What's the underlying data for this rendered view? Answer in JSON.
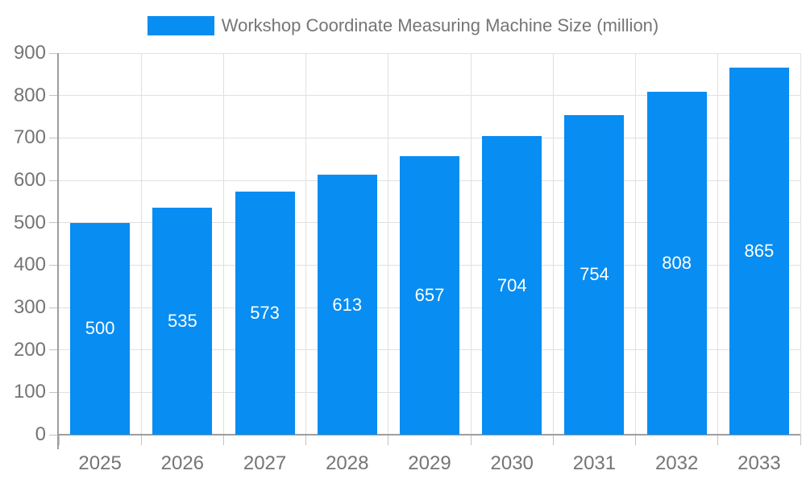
{
  "chart_data": {
    "type": "bar",
    "title": "Workshop Coordinate Measuring Machine Size (million)",
    "categories": [
      "2025",
      "2026",
      "2027",
      "2028",
      "2029",
      "2030",
      "2031",
      "2032",
      "2033"
    ],
    "values": [
      500,
      535,
      573,
      613,
      657,
      704,
      754,
      808,
      865
    ],
    "y_ticks": [
      0,
      100,
      200,
      300,
      400,
      500,
      600,
      700,
      800,
      900
    ],
    "ylim": [
      0,
      900
    ],
    "xlabel": "",
    "ylabel": "",
    "legend_position": "top",
    "grid": true,
    "bar_labels_inside": true,
    "colors": {
      "bar": "#088DF2",
      "bar_label": "#ffffff",
      "axis_line": "#9e9e9e",
      "grid_line": "#e0e0e0",
      "tick_line": "#c2c2c2",
      "text": "#757575",
      "background": "#ffffff"
    }
  }
}
